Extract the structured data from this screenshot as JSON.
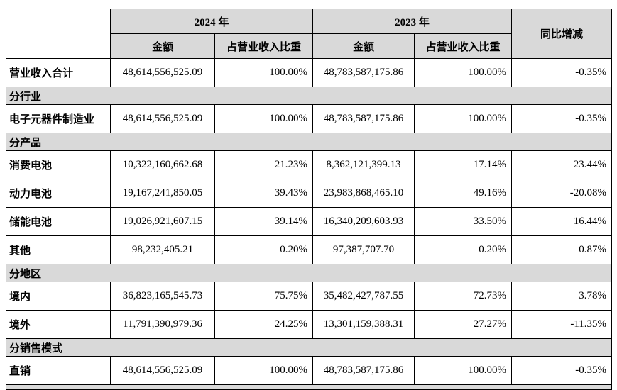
{
  "table": {
    "headers": {
      "year_2024": "2024 年",
      "year_2023": "2023 年",
      "amount": "金额",
      "ratio": "占营业收入比重",
      "yoy": "同比增减"
    },
    "rows": [
      {
        "type": "data",
        "label": "营业收入合计",
        "amount_2024": "48,614,556,525.09",
        "ratio_2024": "100.00%",
        "amount_2023": "48,783,587,175.86",
        "ratio_2023": "100.00%",
        "yoy": "-0.35%"
      },
      {
        "type": "section",
        "label": "分行业"
      },
      {
        "type": "data",
        "label": "电子元器件制造业",
        "amount_2024": "48,614,556,525.09",
        "ratio_2024": "100.00%",
        "amount_2023": "48,783,587,175.86",
        "ratio_2023": "100.00%",
        "yoy": "-0.35%"
      },
      {
        "type": "section",
        "label": "分产品"
      },
      {
        "type": "data",
        "label": "消费电池",
        "amount_2024": "10,322,160,662.68",
        "ratio_2024": "21.23%",
        "amount_2023": "8,362,121,399.13",
        "ratio_2023": "17.14%",
        "yoy": "23.44%"
      },
      {
        "type": "data",
        "label": "动力电池",
        "amount_2024": "19,167,241,850.05",
        "ratio_2024": "39.43%",
        "amount_2023": "23,983,868,465.10",
        "ratio_2023": "49.16%",
        "yoy": "-20.08%"
      },
      {
        "type": "data",
        "label": "储能电池",
        "amount_2024": "19,026,921,607.15",
        "ratio_2024": "39.14%",
        "amount_2023": "16,340,209,603.93",
        "ratio_2023": "33.50%",
        "yoy": "16.44%"
      },
      {
        "type": "data",
        "label": "其他",
        "amount_2024": "98,232,405.21",
        "ratio_2024": "0.20%",
        "amount_2023": "97,387,707.70",
        "ratio_2023": "0.20%",
        "yoy": "0.87%"
      },
      {
        "type": "section",
        "label": "分地区"
      },
      {
        "type": "data",
        "label": "境内",
        "amount_2024": "36,823,165,545.73",
        "ratio_2024": "75.75%",
        "amount_2023": "35,482,427,787.55",
        "ratio_2023": "72.73%",
        "yoy": "3.78%"
      },
      {
        "type": "data",
        "label": "境外",
        "amount_2024": "11,791,390,979.36",
        "ratio_2024": "24.25%",
        "amount_2023": "13,301,159,388.31",
        "ratio_2023": "27.27%",
        "yoy": "-11.35%"
      },
      {
        "type": "section",
        "label": "分销售模式"
      },
      {
        "type": "data",
        "label": "直销",
        "amount_2024": "48,614,556,525.09",
        "ratio_2024": "100.00%",
        "amount_2023": "48,783,587,175.86",
        "ratio_2023": "100.00%",
        "yoy": "-0.35%"
      }
    ]
  }
}
